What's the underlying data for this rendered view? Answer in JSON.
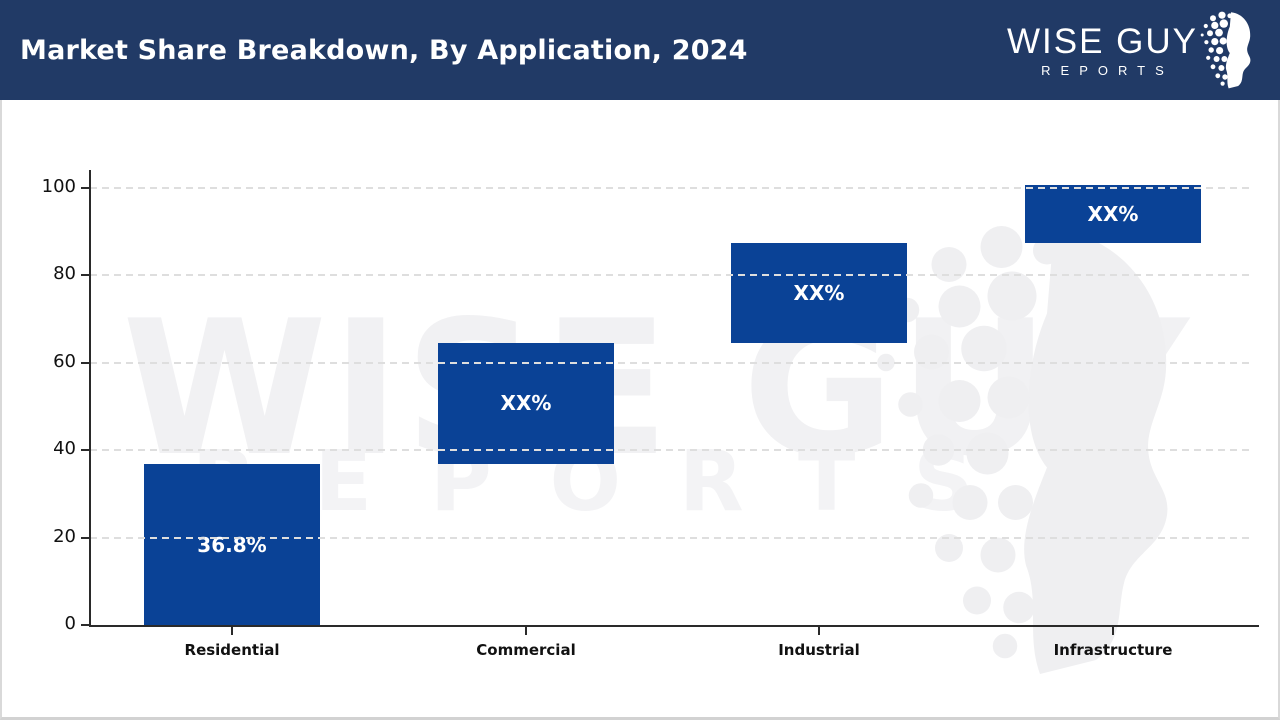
{
  "header": {
    "title": "Market Share Breakdown, By Application, 2024",
    "bg_color": "#213a66",
    "logo": {
      "line1": "WISE GUY",
      "line2": "REPORTS"
    }
  },
  "chart_data": {
    "type": "bar",
    "subtype": "waterfall",
    "title": "Market Share Breakdown, By Application, 2024",
    "xlabel": "",
    "ylabel": "",
    "categories": [
      "Residential",
      "Commercial",
      "Industrial",
      "Infrastructure"
    ],
    "segments": [
      {
        "category": "Residential",
        "start": 0,
        "end": 36.8,
        "label": "36.8%"
      },
      {
        "category": "Commercial",
        "start": 36.8,
        "end": 64.5,
        "label": "XX%"
      },
      {
        "category": "Industrial",
        "start": 64.4,
        "end": 87.4,
        "label": "XX%"
      },
      {
        "category": "Infrastructure",
        "start": 87.4,
        "end": 100.5,
        "label": "XX%"
      }
    ],
    "y_ticks": [
      0,
      20,
      40,
      60,
      80,
      100
    ],
    "ylim": [
      0,
      104
    ],
    "grid": "horizontal-dashed",
    "legend": "none",
    "bar_color": "#0a4296",
    "watermark": {
      "line1": "WISE GUY",
      "line2": "REPORTS"
    }
  }
}
